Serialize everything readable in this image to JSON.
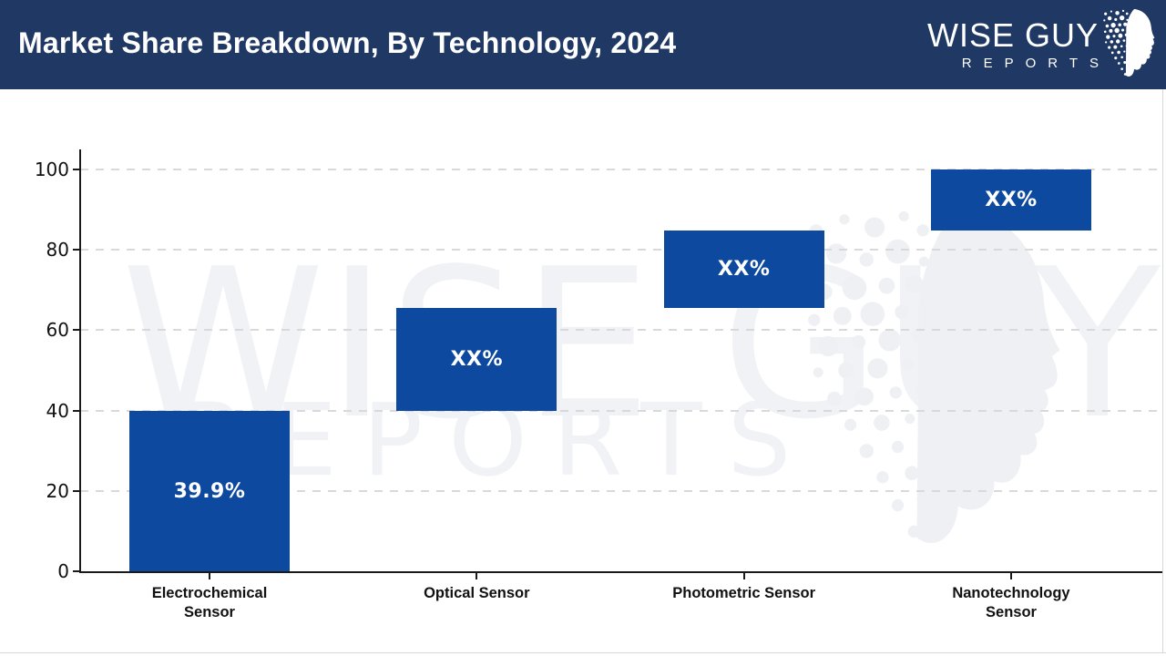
{
  "header": {
    "title": "Market Share Breakdown, By Technology, 2024",
    "logo": {
      "brand": "WISE GUY",
      "sub": "REPORTS"
    }
  },
  "watermark": {
    "brand": "WISE GUY",
    "sub": "REPORTS"
  },
  "colors": {
    "header_bg": "#1f3864",
    "bar": "#0d4a9f",
    "grid": "#d9d9d9",
    "axis": "#1a1a1a",
    "bar_label": "#ffffff",
    "watermark": "#eef0f3"
  },
  "chart_data": {
    "type": "bar",
    "subtype": "waterfall",
    "title": "Market Share Breakdown, By Technology, 2024",
    "categories": [
      "Electrochemical\nSensor",
      "Optical Sensor",
      "Photometric Sensor",
      "Nanotechnology\nSensor"
    ],
    "segments": [
      {
        "category": "Electrochemical Sensor",
        "start": 0,
        "end": 39.9,
        "label": "39.9%"
      },
      {
        "category": "Optical Sensor",
        "start": 40.0,
        "end": 65.5,
        "label": "XX%"
      },
      {
        "category": "Photometric Sensor",
        "start": 65.5,
        "end": 84.8,
        "label": "XX%"
      },
      {
        "category": "Nanotechnology Sensor",
        "start": 84.8,
        "end": 100.0,
        "label": "XX%"
      }
    ],
    "y_ticks": [
      0,
      20,
      40,
      60,
      80,
      100
    ],
    "ylim": [
      0,
      105
    ],
    "xlabel": "",
    "ylabel": "",
    "grid": "horizontal-dashed",
    "legend": false
  }
}
